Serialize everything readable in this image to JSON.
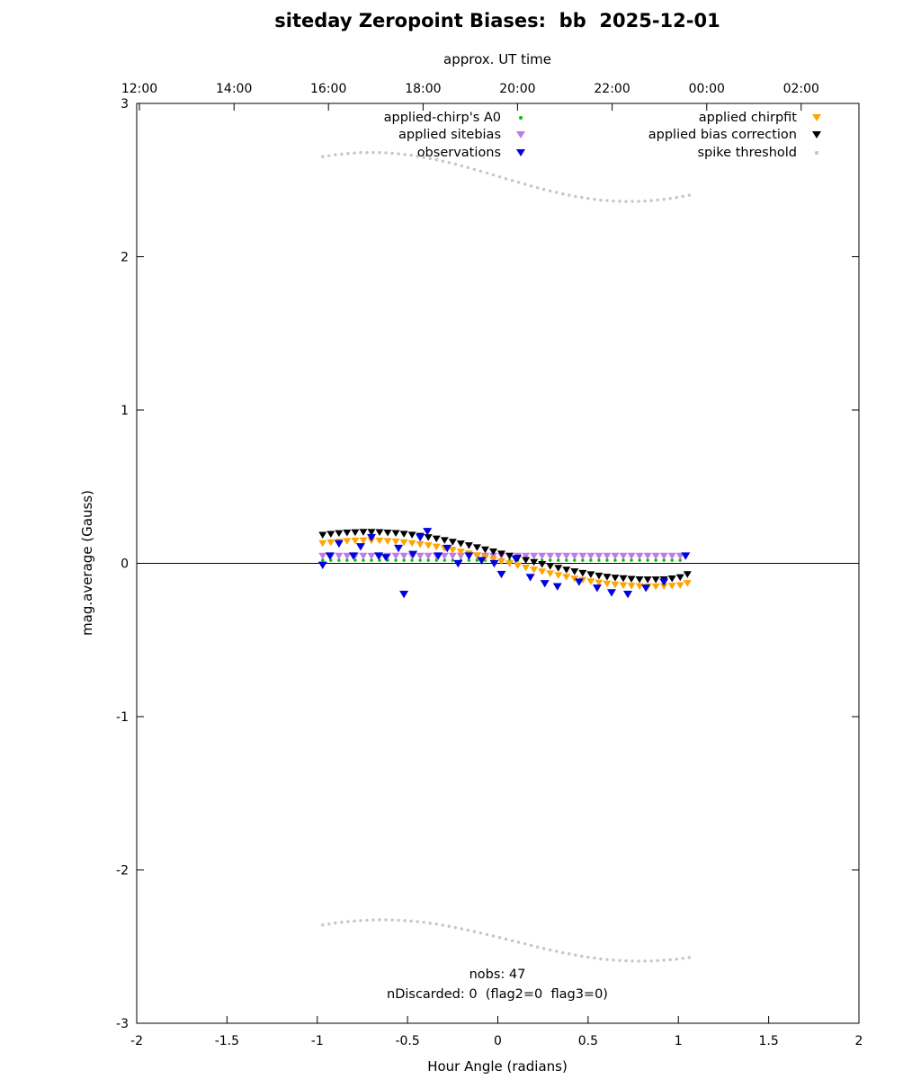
{
  "chart_data": {
    "type": "scatter",
    "title": "siteday Zeropoint Biases:  bb  2025-12-01",
    "x2label": "approx. UT time",
    "xlabel": "Hour Angle (radians)",
    "ylabel": "mag.average (Gauss)",
    "xlim": [
      -2,
      2
    ],
    "ylim": [
      -3,
      3
    ],
    "grid": false,
    "legend_position": "top-inside-two-columns",
    "annotations": [
      "nobs: 47",
      "nDiscarded: 0  (flag2=0  flag3=0)"
    ],
    "x_ticks": [
      {
        "v": -2,
        "label": "-2"
      },
      {
        "v": -1.5,
        "label": "-1.5"
      },
      {
        "v": -1,
        "label": "-1"
      },
      {
        "v": -0.5,
        "label": "-0.5"
      },
      {
        "v": 0,
        "label": "0"
      },
      {
        "v": 0.5,
        "label": "0.5"
      },
      {
        "v": 1,
        "label": "1"
      },
      {
        "v": 1.5,
        "label": "1.5"
      },
      {
        "v": 2,
        "label": "2"
      }
    ],
    "x2_ticks": [
      {
        "v": -1.985,
        "label": "12:00"
      },
      {
        "v": -1.461,
        "label": "14:00"
      },
      {
        "v": -0.938,
        "label": "16:00"
      },
      {
        "v": -0.414,
        "label": "18:00"
      },
      {
        "v": 0.109,
        "label": "20:00"
      },
      {
        "v": 0.633,
        "label": "22:00"
      },
      {
        "v": 1.157,
        "label": "00:00"
      },
      {
        "v": 1.68,
        "label": "02:00"
      }
    ],
    "y_ticks": [
      {
        "v": 3,
        "label": "3"
      },
      {
        "v": 2,
        "label": "2"
      },
      {
        "v": 1,
        "label": "1"
      },
      {
        "v": 0,
        "label": "0"
      },
      {
        "v": -1,
        "label": "-1"
      },
      {
        "v": -2,
        "label": "-2"
      },
      {
        "v": -3,
        "label": "-3"
      }
    ],
    "legend": {
      "left": [
        {
          "label": "applied-chirp's A0",
          "marker": "dot",
          "color": "#00c000"
        },
        {
          "label": "applied sitebias",
          "marker": "tri",
          "color": "#be7bf0"
        },
        {
          "label": "observations",
          "marker": "tri",
          "color": "#0000e0"
        }
      ],
      "right": [
        {
          "label": "applied chirpfit",
          "marker": "tri",
          "color": "#ffa500"
        },
        {
          "label": "applied bias correction",
          "marker": "tri",
          "color": "#000000"
        },
        {
          "label": "spike threshold",
          "marker": "dot",
          "color": "#c0c0c0"
        }
      ]
    },
    "series": [
      {
        "name": "spike threshold (upper)",
        "marker": "dot",
        "color": "#c6c6c6",
        "size": 1.7,
        "densify": 2,
        "points": [
          [
            -0.97,
            2.653
          ],
          [
            -0.9,
            2.665
          ],
          [
            -0.83,
            2.673
          ],
          [
            -0.76,
            2.679
          ],
          [
            -0.69,
            2.68
          ],
          [
            -0.62,
            2.678
          ],
          [
            -0.55,
            2.671
          ],
          [
            -0.48,
            2.662
          ],
          [
            -0.41,
            2.648
          ],
          [
            -0.34,
            2.632
          ],
          [
            -0.27,
            2.614
          ],
          [
            -0.2,
            2.593
          ],
          [
            -0.13,
            2.57
          ],
          [
            -0.06,
            2.546
          ],
          [
            0.01,
            2.521
          ],
          [
            0.08,
            2.497
          ],
          [
            0.15,
            2.473
          ],
          [
            0.22,
            2.45
          ],
          [
            0.29,
            2.429
          ],
          [
            0.36,
            2.41
          ],
          [
            0.43,
            2.393
          ],
          [
            0.5,
            2.38
          ],
          [
            0.57,
            2.369
          ],
          [
            0.64,
            2.363
          ],
          [
            0.71,
            2.36
          ],
          [
            0.78,
            2.361
          ],
          [
            0.85,
            2.366
          ],
          [
            0.92,
            2.374
          ],
          [
            0.99,
            2.386
          ],
          [
            1.06,
            2.401
          ]
        ]
      },
      {
        "name": "spike threshold (lower)",
        "marker": "dot",
        "color": "#c6c6c6",
        "size": 1.7,
        "densify": 2,
        "points": [
          [
            -0.97,
            -2.359
          ],
          [
            -0.9,
            -2.346
          ],
          [
            -0.83,
            -2.337
          ],
          [
            -0.76,
            -2.33
          ],
          [
            -0.69,
            -2.326
          ],
          [
            -0.62,
            -2.325
          ],
          [
            -0.55,
            -2.328
          ],
          [
            -0.48,
            -2.333
          ],
          [
            -0.41,
            -2.342
          ],
          [
            -0.34,
            -2.353
          ],
          [
            -0.27,
            -2.367
          ],
          [
            -0.2,
            -2.384
          ],
          [
            -0.13,
            -2.402
          ],
          [
            -0.06,
            -2.421
          ],
          [
            0.01,
            -2.441
          ],
          [
            0.08,
            -2.462
          ],
          [
            0.15,
            -2.482
          ],
          [
            0.22,
            -2.503
          ],
          [
            0.29,
            -2.522
          ],
          [
            0.36,
            -2.54
          ],
          [
            0.43,
            -2.555
          ],
          [
            0.5,
            -2.569
          ],
          [
            0.57,
            -2.58
          ],
          [
            0.64,
            -2.588
          ],
          [
            0.71,
            -2.593
          ],
          [
            0.78,
            -2.595
          ],
          [
            0.85,
            -2.594
          ],
          [
            0.92,
            -2.589
          ],
          [
            0.99,
            -2.582
          ],
          [
            1.06,
            -2.571
          ]
        ]
      },
      {
        "name": "applied sitebias",
        "marker": "tri",
        "color": "#be7bf0",
        "size": 4.5,
        "x_range": [
          -0.97,
          1.01
        ],
        "n": 45,
        "y_const": 0.05
      },
      {
        "name": "applied-chirp's A0",
        "marker": "dot",
        "color": "#00c000",
        "size": 1.7,
        "x_range": [
          -0.97,
          1.01
        ],
        "n": 45,
        "y_const": 0.02
      },
      {
        "name": "applied chirpfit",
        "marker": "tri",
        "color": "#ffa500",
        "size": 4.5,
        "points": [
          [
            -0.97,
            0.132
          ],
          [
            -0.925,
            0.138
          ],
          [
            -0.88,
            0.142
          ],
          [
            -0.835,
            0.146
          ],
          [
            -0.79,
            0.149
          ],
          [
            -0.745,
            0.15
          ],
          [
            -0.7,
            0.15
          ],
          [
            -0.655,
            0.149
          ],
          [
            -0.61,
            0.146
          ],
          [
            -0.565,
            0.143
          ],
          [
            -0.52,
            0.138
          ],
          [
            -0.475,
            0.132
          ],
          [
            -0.43,
            0.125
          ],
          [
            -0.385,
            0.118
          ],
          [
            -0.34,
            0.109
          ],
          [
            -0.295,
            0.099
          ],
          [
            -0.25,
            0.088
          ],
          [
            -0.205,
            0.077
          ],
          [
            -0.16,
            0.065
          ],
          [
            -0.115,
            0.053
          ],
          [
            -0.07,
            0.04
          ],
          [
            -0.025,
            0.027
          ],
          [
            0.02,
            0.014
          ],
          [
            0.065,
            0.0
          ],
          [
            0.11,
            -0.013
          ],
          [
            0.155,
            -0.027
          ],
          [
            0.2,
            -0.04
          ],
          [
            0.245,
            -0.053
          ],
          [
            0.29,
            -0.065
          ],
          [
            0.335,
            -0.077
          ],
          [
            0.38,
            -0.088
          ],
          [
            0.425,
            -0.099
          ],
          [
            0.47,
            -0.108
          ],
          [
            0.515,
            -0.117
          ],
          [
            0.56,
            -0.125
          ],
          [
            0.605,
            -0.132
          ],
          [
            0.65,
            -0.138
          ],
          [
            0.695,
            -0.143
          ],
          [
            0.74,
            -0.146
          ],
          [
            0.785,
            -0.149
          ],
          [
            0.83,
            -0.15
          ],
          [
            0.875,
            -0.15
          ],
          [
            0.92,
            -0.149
          ],
          [
            0.965,
            -0.146
          ],
          [
            1.01,
            -0.142
          ],
          [
            1.05,
            -0.128
          ]
        ]
      },
      {
        "name": "applied bias correction",
        "marker": "tri",
        "color": "#000000",
        "size": 4.5,
        "points": [
          [
            -0.97,
            0.186
          ],
          [
            -0.925,
            0.192
          ],
          [
            -0.88,
            0.197
          ],
          [
            -0.835,
            0.201
          ],
          [
            -0.79,
            0.203
          ],
          [
            -0.745,
            0.205
          ],
          [
            -0.7,
            0.205
          ],
          [
            -0.655,
            0.204
          ],
          [
            -0.61,
            0.201
          ],
          [
            -0.565,
            0.198
          ],
          [
            -0.52,
            0.193
          ],
          [
            -0.475,
            0.187
          ],
          [
            -0.43,
            0.18
          ],
          [
            -0.385,
            0.171
          ],
          [
            -0.34,
            0.162
          ],
          [
            -0.295,
            0.152
          ],
          [
            -0.25,
            0.141
          ],
          [
            -0.205,
            0.13
          ],
          [
            -0.16,
            0.118
          ],
          [
            -0.115,
            0.105
          ],
          [
            -0.07,
            0.091
          ],
          [
            -0.025,
            0.078
          ],
          [
            0.02,
            0.064
          ],
          [
            0.065,
            0.05
          ],
          [
            0.11,
            0.036
          ],
          [
            0.155,
            0.022
          ],
          [
            0.2,
            0.009
          ],
          [
            0.245,
            -0.004
          ],
          [
            0.29,
            -0.017
          ],
          [
            0.335,
            -0.029
          ],
          [
            0.38,
            -0.041
          ],
          [
            0.425,
            -0.052
          ],
          [
            0.47,
            -0.062
          ],
          [
            0.515,
            -0.071
          ],
          [
            0.56,
            -0.08
          ],
          [
            0.605,
            -0.087
          ],
          [
            0.65,
            -0.093
          ],
          [
            0.695,
            -0.097
          ],
          [
            0.74,
            -0.101
          ],
          [
            0.785,
            -0.104
          ],
          [
            0.83,
            -0.105
          ],
          [
            0.875,
            -0.105
          ],
          [
            0.92,
            -0.104
          ],
          [
            0.965,
            -0.098
          ],
          [
            1.01,
            -0.09
          ],
          [
            1.05,
            -0.07
          ]
        ]
      },
      {
        "name": "observations",
        "marker": "tri",
        "color": "#0000e0",
        "size": 5,
        "points": [
          [
            -0.97,
            -0.01
          ],
          [
            -0.93,
            0.05
          ],
          [
            -0.88,
            0.13
          ],
          [
            -0.8,
            0.05
          ],
          [
            -0.76,
            0.11
          ],
          [
            -0.7,
            0.17
          ],
          [
            -0.66,
            0.05
          ],
          [
            -0.62,
            0.04
          ],
          [
            -0.55,
            0.1
          ],
          [
            -0.52,
            -0.2
          ],
          [
            -0.47,
            0.06
          ],
          [
            -0.43,
            0.17
          ],
          [
            -0.39,
            0.21
          ],
          [
            -0.33,
            0.05
          ],
          [
            -0.28,
            0.1
          ],
          [
            -0.22,
            0.0
          ],
          [
            -0.16,
            0.05
          ],
          [
            -0.09,
            0.02
          ],
          [
            -0.02,
            0.0
          ],
          [
            0.02,
            -0.07
          ],
          [
            0.1,
            0.03
          ],
          [
            0.18,
            -0.09
          ],
          [
            0.26,
            -0.13
          ],
          [
            0.33,
            -0.15
          ],
          [
            0.45,
            -0.12
          ],
          [
            0.55,
            -0.16
          ],
          [
            0.63,
            -0.19
          ],
          [
            0.72,
            -0.2
          ],
          [
            0.82,
            -0.16
          ],
          [
            0.92,
            -0.12
          ],
          [
            1.04,
            0.05
          ]
        ]
      }
    ]
  }
}
